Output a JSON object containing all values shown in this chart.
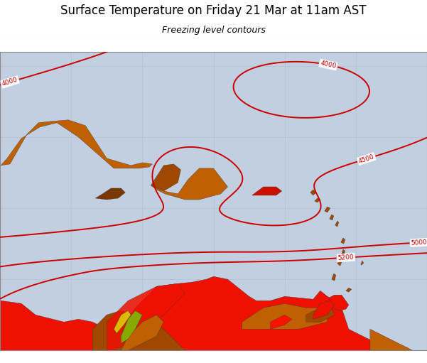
{
  "title": "Surface Temperature on Friday 21 Mar at 11am AST",
  "subtitle": "Freezing level contours",
  "title_fontsize": 12,
  "subtitle_fontsize": 9,
  "background_color": "#ffffff",
  "ocean_color": "#c2cfe0",
  "header_color": "#f0f0f0",
  "grid_color": "#a8b8cc",
  "contour_color": "#cc0000",
  "contour_linewidth": 1.4,
  "contour_label_fontsize": 6.5,
  "map_extent": [
    -85,
    -55,
    7,
    28
  ],
  "colors": {
    "c_brown_dark": "#7a3800",
    "c_brown": "#a04800",
    "c_orange": "#c06000",
    "c_orange2": "#cc7700",
    "c_red_dark": "#cc1100",
    "c_red": "#ee1100",
    "c_bright_red": "#ff1100",
    "c_yellow": "#ddbb00",
    "c_yellow_green": "#88aa00",
    "c_green": "#44aa00"
  }
}
